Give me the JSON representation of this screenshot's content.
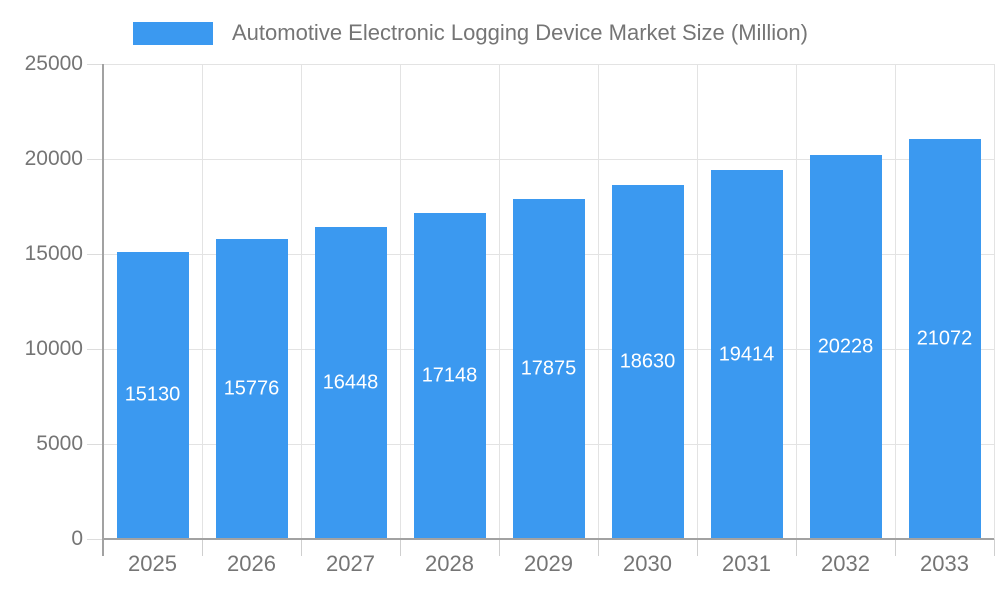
{
  "legend": {
    "swatch_color": "#3b99f0"
  },
  "chart_data": {
    "type": "bar",
    "title": "Automotive Electronic Logging Device Market Size (Million)",
    "categories": [
      "2025",
      "2026",
      "2027",
      "2028",
      "2029",
      "2030",
      "2031",
      "2032",
      "2033"
    ],
    "values": [
      15130,
      15776,
      16448,
      17148,
      17875,
      18630,
      19414,
      20228,
      21072
    ],
    "xlabel": "",
    "ylabel": "",
    "ylim": [
      0,
      25000
    ],
    "yticks": [
      0,
      5000,
      10000,
      15000,
      20000,
      25000
    ],
    "grid": "on",
    "legend_position": "top",
    "bar_color": "#3b99f0",
    "value_label_color": "#ffffff",
    "axis_text_color": "#757575"
  }
}
